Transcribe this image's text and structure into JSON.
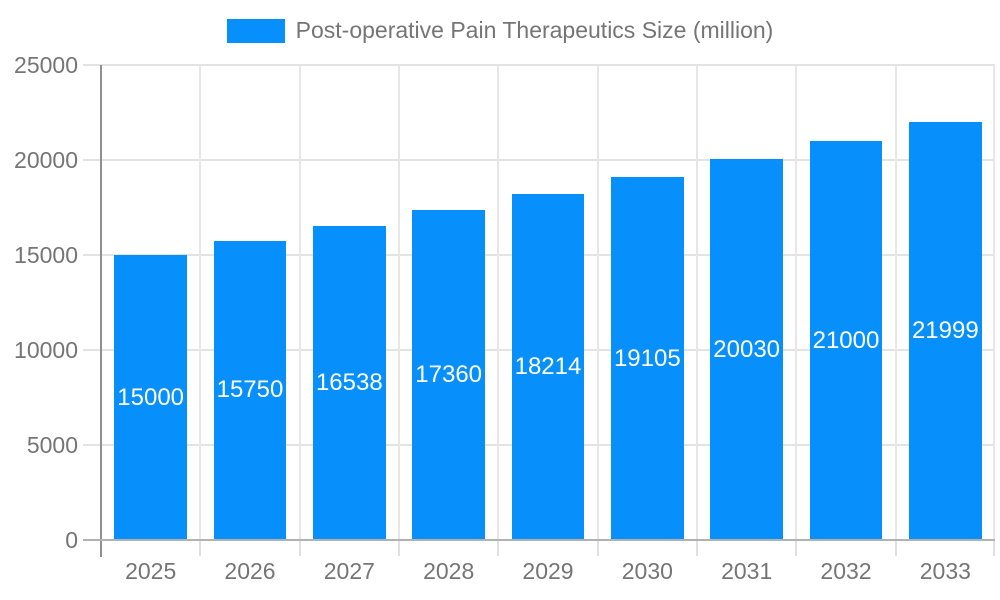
{
  "chart_data": {
    "type": "bar",
    "title": "Post-operative Pain Therapeutics Size (million)",
    "categories": [
      "2025",
      "2026",
      "2027",
      "2028",
      "2029",
      "2030",
      "2031",
      "2032",
      "2033"
    ],
    "series": [
      {
        "name": "Post-operative Pain Therapeutics Size (million)",
        "values": [
          15000,
          15750,
          16538,
          17360,
          18214,
          19105,
          20030,
          21000,
          21999
        ]
      }
    ],
    "bar_value_labels": [
      "15000",
      "15750",
      "16538",
      "17360",
      "18214",
      "19105",
      "20030",
      "21000",
      "21999"
    ],
    "xlabel": "",
    "ylabel": "",
    "ylim": [
      0,
      25000
    ],
    "yticks": [
      0,
      5000,
      10000,
      15000,
      20000,
      25000
    ],
    "grid": true,
    "legend_position": "top-center",
    "colors": {
      "bar": "#0790fb",
      "bar_label_text": "#ffffff",
      "axis_text": "#757575",
      "gridline": "#e3e3e3",
      "y_axis_line": "#8f8f8f",
      "x_axis_line": "#b2b2b2"
    }
  }
}
